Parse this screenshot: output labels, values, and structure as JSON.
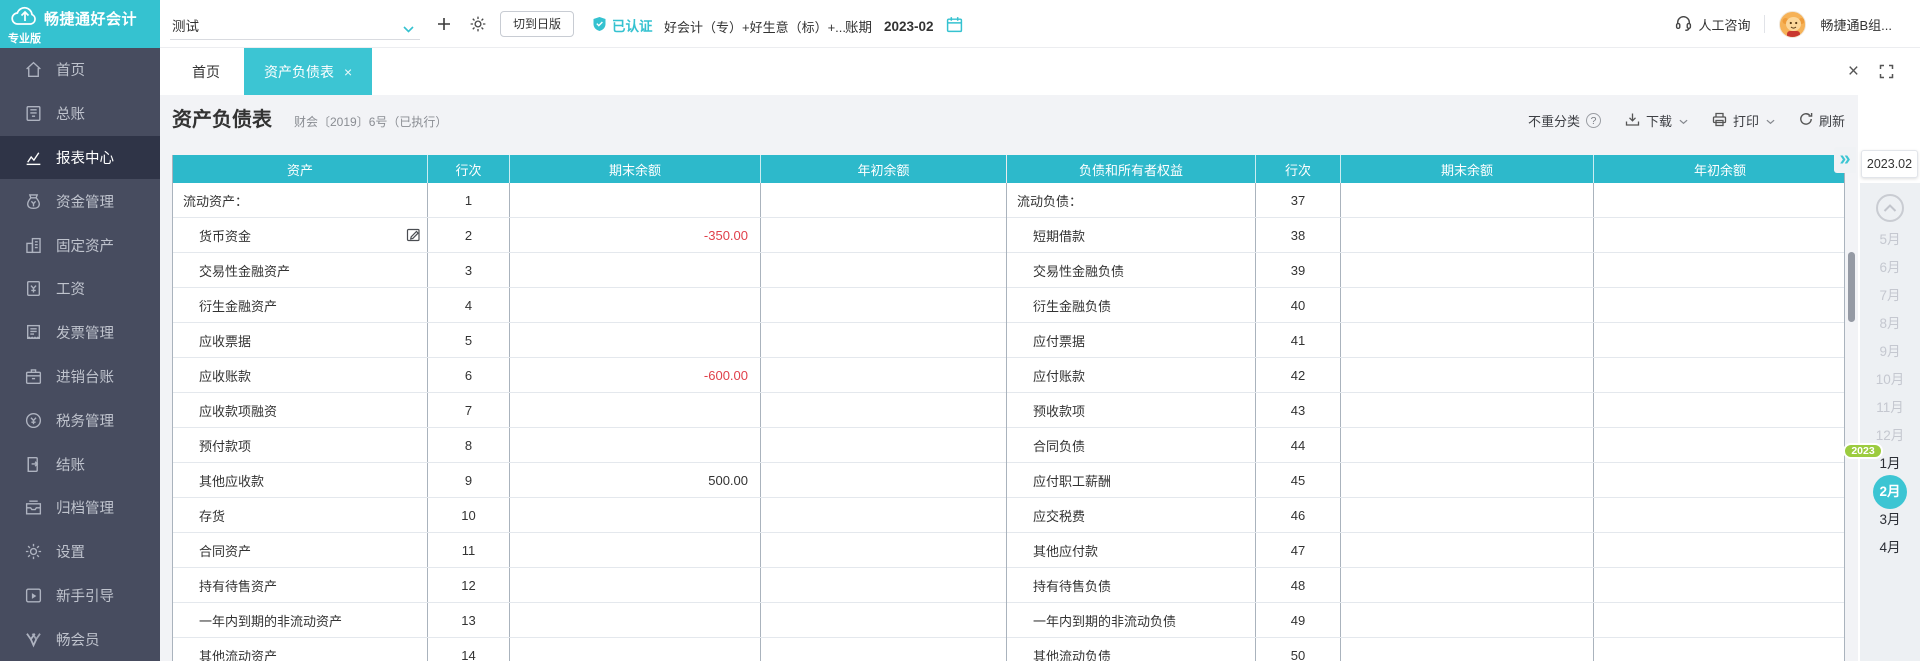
{
  "colors": {
    "accent": "#35c2d0",
    "tab_teal": "#3cc5d3",
    "header_teal": "#2db9cb",
    "sidebar_bg": "#474c5f",
    "sidebar_active_bg": "#2f3447",
    "negative_red": "#e0414b",
    "badge_green": "#9ccc3f"
  },
  "topbar": {
    "brand_name": "畅捷通好会计",
    "brand_edition": "专业版",
    "account_set": "测试",
    "switch_version_button": "切到日版",
    "certified_badge": "已认证",
    "products_summary": "好会计（专）+好生意（标）+...",
    "period_label": "账期",
    "period_value": "2023-02",
    "support_link": "人工咨询",
    "user_name": "畅捷通B组..."
  },
  "tab_bar": {
    "tabs": [
      {
        "id": "home",
        "label": "首页",
        "active": false,
        "closable": false
      },
      {
        "id": "balance-sheet",
        "label": "资产负债表",
        "active": true,
        "closable": true
      }
    ]
  },
  "sidebar": {
    "items": [
      {
        "id": "home",
        "label": "首页",
        "icon": "home-icon",
        "active": false
      },
      {
        "id": "general-ledger",
        "label": "总账",
        "icon": "ledger-icon",
        "active": false
      },
      {
        "id": "report-center",
        "label": "报表中心",
        "icon": "report-icon",
        "active": true
      },
      {
        "id": "funds",
        "label": "资金管理",
        "icon": "moneybag-icon",
        "active": false
      },
      {
        "id": "fixed-assets",
        "label": "固定资产",
        "icon": "building-icon",
        "active": false
      },
      {
        "id": "salary",
        "label": "工资",
        "icon": "salary-icon",
        "active": false
      },
      {
        "id": "invoice",
        "label": "发票管理",
        "icon": "invoice-icon",
        "active": false
      },
      {
        "id": "purchase-sales",
        "label": "进销台账",
        "icon": "stock-icon",
        "active": false
      },
      {
        "id": "tax",
        "label": "税务管理",
        "icon": "tax-icon",
        "active": false
      },
      {
        "id": "closing",
        "label": "结账",
        "icon": "closing-icon",
        "active": false
      },
      {
        "id": "archive",
        "label": "归档管理",
        "icon": "archive-icon",
        "active": false
      },
      {
        "id": "settings",
        "label": "设置",
        "icon": "gear-icon",
        "active": false
      },
      {
        "id": "guide",
        "label": "新手引导",
        "icon": "guide-icon",
        "active": false
      },
      {
        "id": "member",
        "label": "畅会员",
        "icon": "member-icon",
        "active": false
      }
    ]
  },
  "page": {
    "title": "资产负债表",
    "subtitle": "财会〔2019〕6号（已执行）",
    "toolbar": {
      "classification": "不重分类",
      "download": "下载",
      "print": "打印",
      "refresh": "刷新"
    }
  },
  "balance_table": {
    "left": {
      "headers": [
        "资产",
        "行次",
        "期末余额",
        "年初余额"
      ],
      "rows": [
        {
          "name": "流动资产：",
          "line": "1",
          "end": "",
          "begin": "",
          "group": true
        },
        {
          "name": "货币资金",
          "line": "2",
          "end": "-350.00",
          "begin": "",
          "editable": true
        },
        {
          "name": "交易性金融资产",
          "line": "3",
          "end": "",
          "begin": ""
        },
        {
          "name": "衍生金融资产",
          "line": "4",
          "end": "",
          "begin": ""
        },
        {
          "name": "应收票据",
          "line": "5",
          "end": "",
          "begin": ""
        },
        {
          "name": "应收账款",
          "line": "6",
          "end": "-600.00",
          "begin": ""
        },
        {
          "name": "应收款项融资",
          "line": "7",
          "end": "",
          "begin": ""
        },
        {
          "name": "预付款项",
          "line": "8",
          "end": "",
          "begin": ""
        },
        {
          "name": "其他应收款",
          "line": "9",
          "end": "500.00",
          "begin": ""
        },
        {
          "name": "存货",
          "line": "10",
          "end": "",
          "begin": ""
        },
        {
          "name": "合同资产",
          "line": "11",
          "end": "",
          "begin": ""
        },
        {
          "name": "持有待售资产",
          "line": "12",
          "end": "",
          "begin": ""
        },
        {
          "name": "一年内到期的非流动资产",
          "line": "13",
          "end": "",
          "begin": ""
        },
        {
          "name": "其他流动资产",
          "line": "14",
          "end": "",
          "begin": ""
        }
      ]
    },
    "right": {
      "headers": [
        "负债和所有者权益",
        "行次",
        "期末余额",
        "年初余额"
      ],
      "rows": [
        {
          "name": "流动负债：",
          "line": "37",
          "end": "",
          "begin": "",
          "group": true
        },
        {
          "name": "短期借款",
          "line": "38",
          "end": "",
          "begin": ""
        },
        {
          "name": "交易性金融负债",
          "line": "39",
          "end": "",
          "begin": ""
        },
        {
          "name": "衍生金融负债",
          "line": "40",
          "end": "",
          "begin": ""
        },
        {
          "name": "应付票据",
          "line": "41",
          "end": "",
          "begin": ""
        },
        {
          "name": "应付账款",
          "line": "42",
          "end": "",
          "begin": ""
        },
        {
          "name": "预收款项",
          "line": "43",
          "end": "",
          "begin": ""
        },
        {
          "name": "合同负债",
          "line": "44",
          "end": "",
          "begin": ""
        },
        {
          "name": "应付职工薪酬",
          "line": "45",
          "end": "",
          "begin": ""
        },
        {
          "name": "应交税费",
          "line": "46",
          "end": "",
          "begin": ""
        },
        {
          "name": "其他应付款",
          "line": "47",
          "end": "",
          "begin": ""
        },
        {
          "name": "持有待售负债",
          "line": "48",
          "end": "",
          "begin": ""
        },
        {
          "name": "一年内到期的非流动负债",
          "line": "49",
          "end": "",
          "begin": ""
        },
        {
          "name": "其他流动负债",
          "line": "50",
          "end": "",
          "begin": ""
        }
      ]
    }
  },
  "date_panel": {
    "current": "2023.02",
    "year_badge": "2023",
    "months": [
      {
        "label": "5月",
        "state": "disabled"
      },
      {
        "label": "6月",
        "state": "disabled"
      },
      {
        "label": "7月",
        "state": "disabled"
      },
      {
        "label": "8月",
        "state": "disabled"
      },
      {
        "label": "9月",
        "state": "disabled"
      },
      {
        "label": "10月",
        "state": "disabled"
      },
      {
        "label": "11月",
        "state": "disabled"
      },
      {
        "label": "12月",
        "state": "disabled"
      },
      {
        "label": "1月",
        "state": "normal"
      },
      {
        "label": "2月",
        "state": "selected"
      },
      {
        "label": "3月",
        "state": "normal"
      },
      {
        "label": "4月",
        "state": "normal"
      }
    ]
  }
}
